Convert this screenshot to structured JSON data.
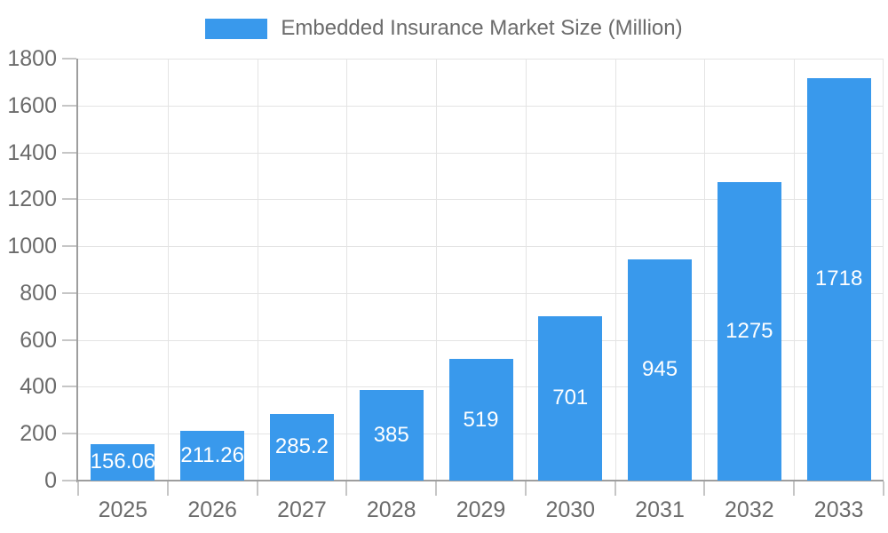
{
  "chart_data": {
    "type": "bar",
    "title": "",
    "legend_label": "Embedded Insurance Market Size (Million)",
    "legend_position": "top",
    "categories": [
      "2025",
      "2026",
      "2027",
      "2028",
      "2029",
      "2030",
      "2031",
      "2032",
      "2033"
    ],
    "series": [
      {
        "name": "Embedded Insurance Market Size (Million)",
        "values": [
          156.06,
          211.26,
          285.2,
          385,
          519,
          701,
          945,
          1275,
          1718
        ],
        "labels": [
          "156.06",
          "211.26",
          "285.2",
          "385",
          "519",
          "701",
          "945",
          "1275",
          "1718"
        ],
        "color": "#3999EC"
      }
    ],
    "xlabel": "",
    "ylabel": "",
    "ylim": [
      0,
      1800
    ],
    "ytick_step": 200,
    "yticks": [
      "0",
      "200",
      "400",
      "600",
      "800",
      "1000",
      "1200",
      "1400",
      "1600",
      "1800"
    ],
    "grid": true,
    "legend_visible": true,
    "bar_labels_inside": true,
    "colors": {
      "bar": "#3999EC",
      "axis_text": "#6b6b6b",
      "grid_line": "#e4e4e4",
      "axis_line": "#9e9e9e",
      "tick_mark": "#c6c6c6",
      "bar_label_text": "#ffffff",
      "background": "#ffffff"
    }
  }
}
